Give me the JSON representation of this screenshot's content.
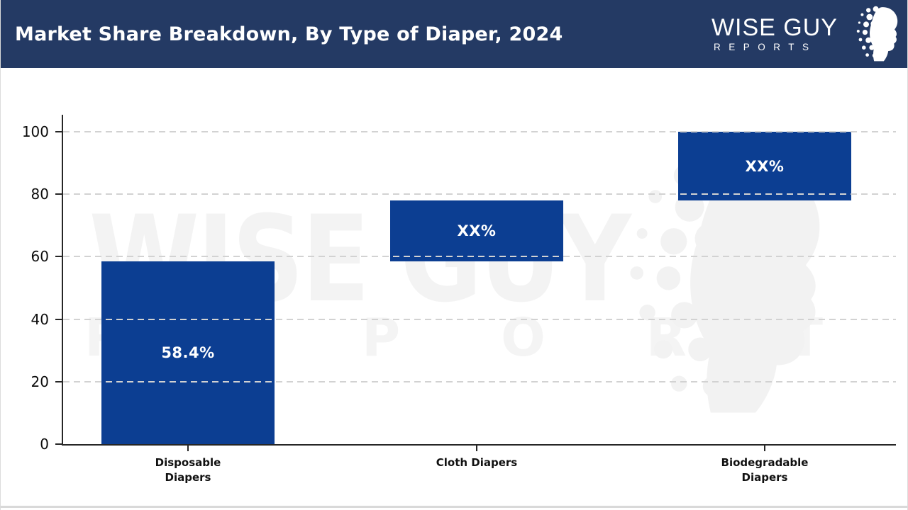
{
  "header": {
    "title": "Market Share Breakdown, By Type of Diaper, 2024",
    "logo": {
      "line1": "WISE GUY",
      "line2": "REPORTS"
    }
  },
  "watermark": {
    "line1": "WISE GUY",
    "line2": "R E P O R T S"
  },
  "colors": {
    "header_bg": "#243a64",
    "bar": "#0c3e92",
    "grid": "#d2d2d2",
    "axis": "#262626",
    "bar_label": "#ffffff",
    "watermark": "#f3f3f3"
  },
  "chart_data": {
    "type": "bar",
    "subtype": "waterfall-breakdown",
    "title": "Market Share Breakdown, By Type of Diaper, 2024",
    "categories": [
      "Disposable Diapers",
      "Cloth Diapers",
      "Biodegradable Diapers"
    ],
    "series": [
      {
        "name": "Disposable Diapers",
        "start": 0,
        "end": 58.4,
        "label": "58.4%"
      },
      {
        "name": "Cloth Diapers",
        "start": 58.4,
        "end": 78,
        "label": "XX%"
      },
      {
        "name": "Biodegradable Diapers",
        "start": 78,
        "end": 100,
        "label": "XX%"
      }
    ],
    "xlabel": "",
    "ylabel": "",
    "ylim": [
      0,
      100
    ],
    "yticks": [
      0,
      20,
      40,
      60,
      80,
      100
    ],
    "grid": "dashed-horizontal",
    "legend": "none",
    "bar_color": "#0c3e92"
  }
}
